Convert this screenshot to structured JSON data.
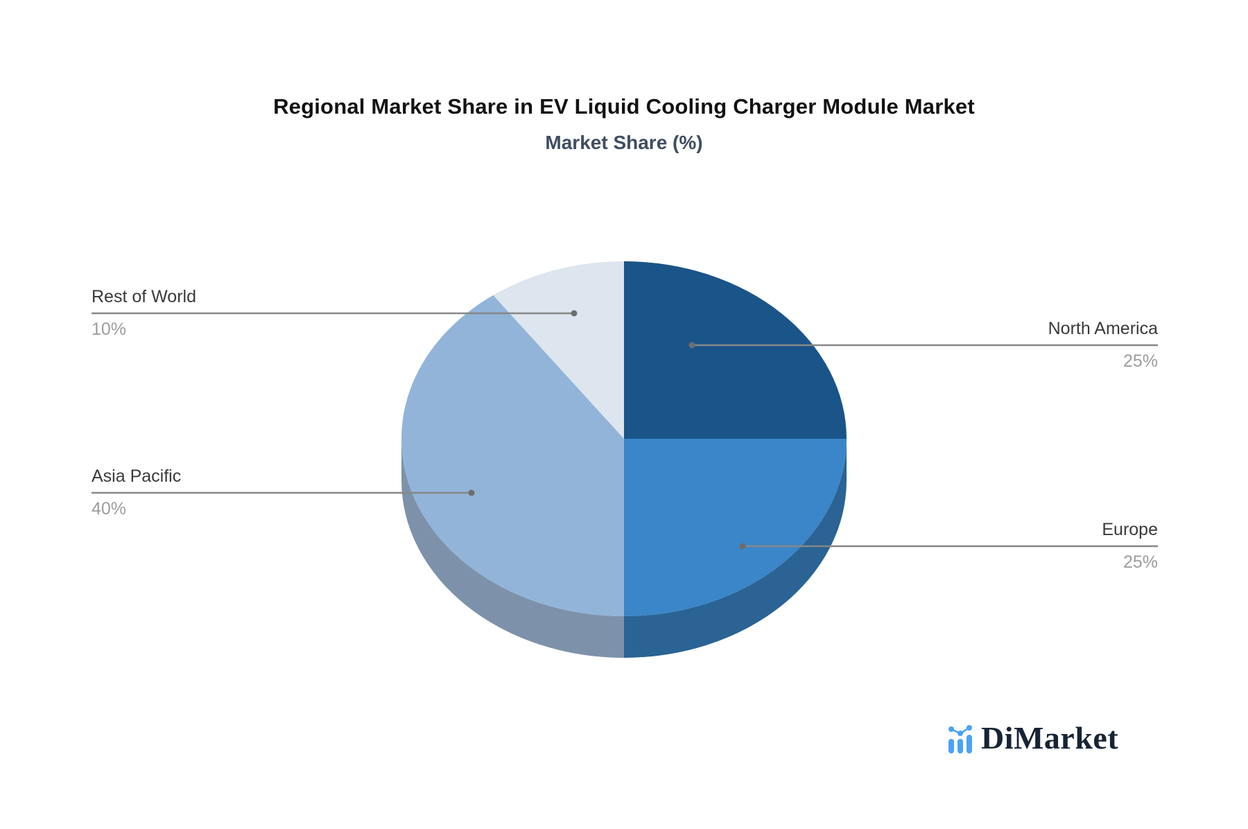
{
  "brand": {
    "name": "DiMarket",
    "icon": "bar-chart-logo-icon",
    "icon_color": "#4aa2f5",
    "text_color": "#162435"
  },
  "chart_data": {
    "type": "pie",
    "title": "Regional Market Share in EV Liquid Cooling Charger Module Market",
    "subtitle": "Market Share (%)",
    "unit": "%",
    "style_3d": true,
    "direction": "clockwise",
    "start_angle": "12-oclock",
    "legend": "none",
    "title_color": "#121212",
    "subtitle_color": "#3f4d63",
    "label_color": "#3a3a3a",
    "value_color": "#9c9c9c",
    "leader_line_color": "#878787",
    "slices": [
      {
        "label": "North America",
        "value": 25,
        "display": "25%",
        "color": "#1b5489",
        "side_color": "#174873",
        "label_side": "right"
      },
      {
        "label": "Europe",
        "value": 25,
        "display": "25%",
        "color": "#3b86c8",
        "side_color": "#2a6394",
        "label_side": "right"
      },
      {
        "label": "Asia Pacific",
        "value": 40,
        "display": "40%",
        "color": "#92b4d9",
        "side_color": "#7d92aa",
        "label_side": "left"
      },
      {
        "label": "Rest of World",
        "value": 10,
        "display": "10%",
        "color": "#dde5ee",
        "side_color": "#b9c4d2",
        "label_side": "left"
      }
    ]
  }
}
